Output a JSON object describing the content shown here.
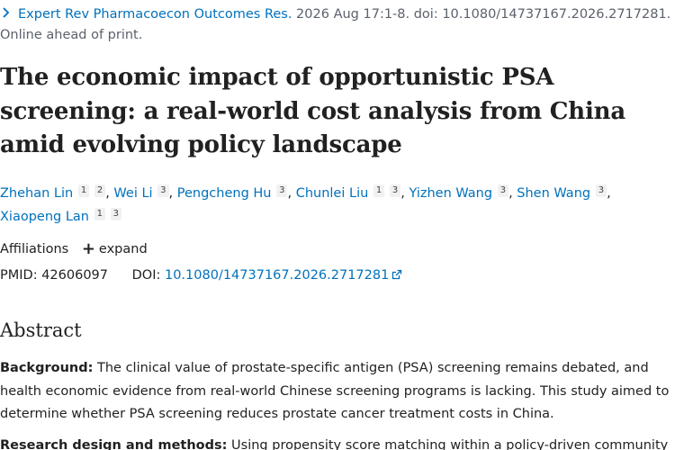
{
  "citation": {
    "journal": "Expert Rev Pharmacoecon Outcomes Res.",
    "details": " 2026 Aug 17:1-8. doi: 10.1080/14737167.2026.2717281.",
    "status": "Online ahead of print."
  },
  "article": {
    "title": "The economic impact of opportunistic PSA screening: a real-world cost analysis from China amid evolving policy landscape"
  },
  "authors": [
    {
      "name": "Zhehan Lin",
      "affiliations": [
        "1",
        "2"
      ]
    },
    {
      "name": "Wei Li",
      "affiliations": [
        "3"
      ]
    },
    {
      "name": "Pengcheng Hu",
      "affiliations": [
        "3"
      ]
    },
    {
      "name": "Chunlei Liu",
      "affiliations": [
        "1",
        "3"
      ]
    },
    {
      "name": "Yizhen Wang",
      "affiliations": [
        "3"
      ]
    },
    {
      "name": "Shen Wang",
      "affiliations": [
        "3"
      ]
    },
    {
      "name": "Xiaopeng Lan",
      "affiliations": [
        "1",
        "3"
      ]
    }
  ],
  "separator": ",",
  "affiliations": {
    "label": "Affiliations",
    "toggle_label": "expand"
  },
  "identifiers": {
    "pmid_label": "PMID:",
    "pmid": "42606097",
    "doi_label": "DOI:",
    "doi": "10.1080/14737167.2026.2717281"
  },
  "abstract": {
    "heading": "Abstract",
    "sections": [
      {
        "label": "Background:",
        "text": "The clinical value of prostate-specific antigen (PSA) screening remains debated, and health economic evidence from real-world Chinese screening programs is lacking. This study aimed to determine whether PSA screening reduces prostate cancer treatment costs in China."
      },
      {
        "label": "Research design and methods:",
        "text": "Using propensity score matching within a policy-driven community"
      }
    ]
  },
  "colors": {
    "link": "#0071bc",
    "text": "#212121",
    "muted": "#5b616b",
    "badge_bg": "#f1f1f1"
  },
  "icons": {
    "journal_toggle": "chevron-right-icon",
    "affiliations_toggle": "plus-icon",
    "doi_link": "external-link-icon"
  }
}
